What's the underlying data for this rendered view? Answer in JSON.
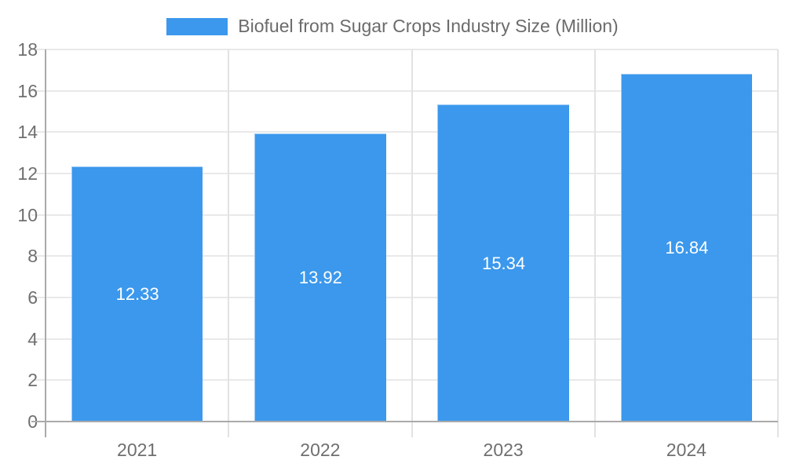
{
  "chart_data": {
    "type": "bar",
    "title": "Biofuel from Sugar Crops Industry Size (Million)",
    "categories": [
      "2021",
      "2022",
      "2023",
      "2024"
    ],
    "values": [
      12.33,
      13.92,
      15.34,
      16.84
    ],
    "value_labels": [
      "12.33",
      "13.92",
      "15.34",
      "16.84"
    ],
    "xlabel": "",
    "ylabel": "",
    "ylim": [
      0,
      18
    ],
    "ytick_step": 2,
    "ytick_labels": [
      "0",
      "2",
      "4",
      "6",
      "8",
      "10",
      "12",
      "14",
      "16",
      "18"
    ],
    "grid": true,
    "legend_position": "top-center",
    "colors": {
      "bar": "#3b98ec",
      "bar_border": "#9fccf6",
      "value_label": "#ffffff",
      "axis_text": "#6f6f6f",
      "legend_text": "#6b6b6b",
      "grid_h": "#e9e9e9",
      "grid_v": "#e2e2e2",
      "axis_line": "#aaaaaa"
    }
  }
}
